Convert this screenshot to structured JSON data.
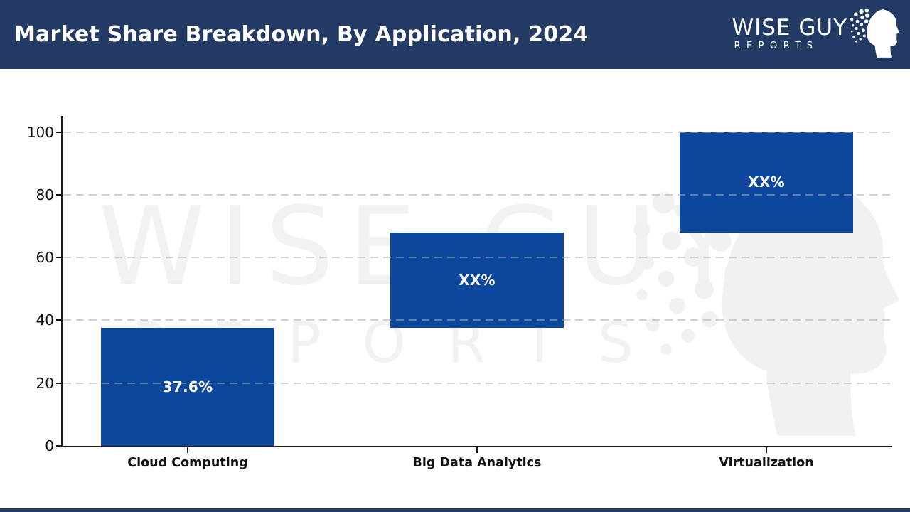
{
  "header": {
    "title": "Market Share Breakdown, By Application, 2024",
    "logo": {
      "line1": "WISE GUY",
      "line2": "REPORTS"
    }
  },
  "watermark": {
    "line1": "WISE GUY",
    "line2": "REPORTS"
  },
  "chart_data": {
    "type": "bar",
    "subtype": "floating-waterfall-segments",
    "title": "Market Share Breakdown, By Application, 2024",
    "categories": [
      "Cloud Computing",
      "Big Data Analytics",
      "Virtualization"
    ],
    "segments": [
      {
        "category": "Cloud Computing",
        "start": 0,
        "end": 37.6,
        "label": "37.6%"
      },
      {
        "category": "Big Data Analytics",
        "start": 37.6,
        "end": 68,
        "label": "XX%"
      },
      {
        "category": "Virtualization",
        "start": 68,
        "end": 100,
        "label": "XX%"
      }
    ],
    "xlabel": "",
    "ylabel": "",
    "ylim": [
      0,
      105
    ],
    "yticks": [
      0,
      20,
      40,
      60,
      80,
      100
    ],
    "grid": "horizontal-dashed",
    "legend": "none",
    "bar_color": "#0d479d",
    "bar_label_color": "#ffffff",
    "axis_color": "#1a1a1a",
    "grid_color": "#d9d9d9",
    "header_bg": "#223a64"
  }
}
